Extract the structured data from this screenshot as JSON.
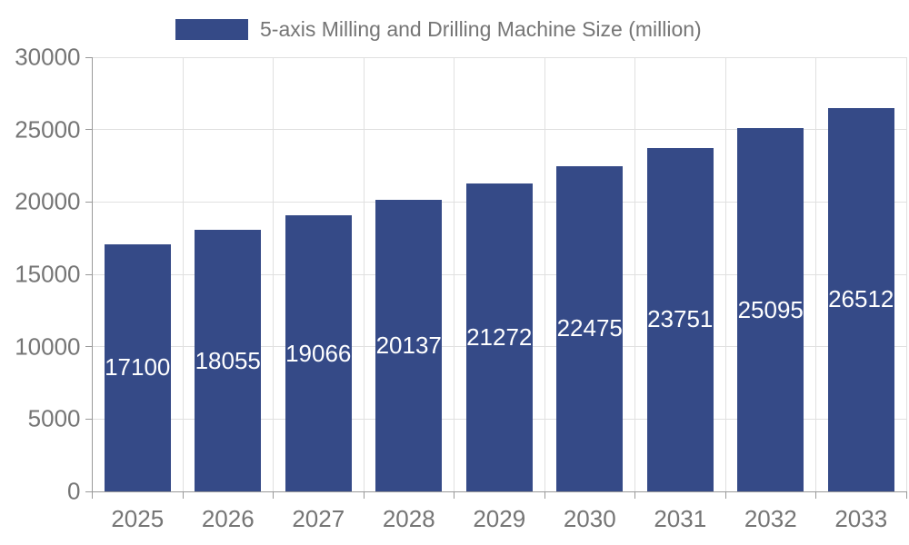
{
  "legend": {
    "label": "5-axis Milling and Drilling Machine Size (million)"
  },
  "chart_data": {
    "type": "bar",
    "title": "5-axis Milling and Drilling Machine Size (million)",
    "categories": [
      "2025",
      "2026",
      "2027",
      "2028",
      "2029",
      "2030",
      "2031",
      "2032",
      "2033"
    ],
    "values": [
      17100,
      18055,
      19066,
      20137,
      21272,
      22475,
      23751,
      25095,
      26512
    ],
    "data_labels": [
      "17100",
      "18055",
      "19066",
      "20137",
      "21272",
      "22475",
      "23751",
      "25095",
      "26512"
    ],
    "xlabel": "",
    "ylabel": "",
    "ylim": [
      0,
      30000
    ],
    "yticks": [
      0,
      5000,
      10000,
      15000,
      20000,
      25000,
      30000
    ],
    "grid": true,
    "legend_position": "top",
    "colors": {
      "bar": "#354a87",
      "bar_label": "#ffffff",
      "axis_text": "#757575",
      "grid_line": "#e0e0e0",
      "axis_line": "#999999",
      "background": "#ffffff"
    }
  }
}
